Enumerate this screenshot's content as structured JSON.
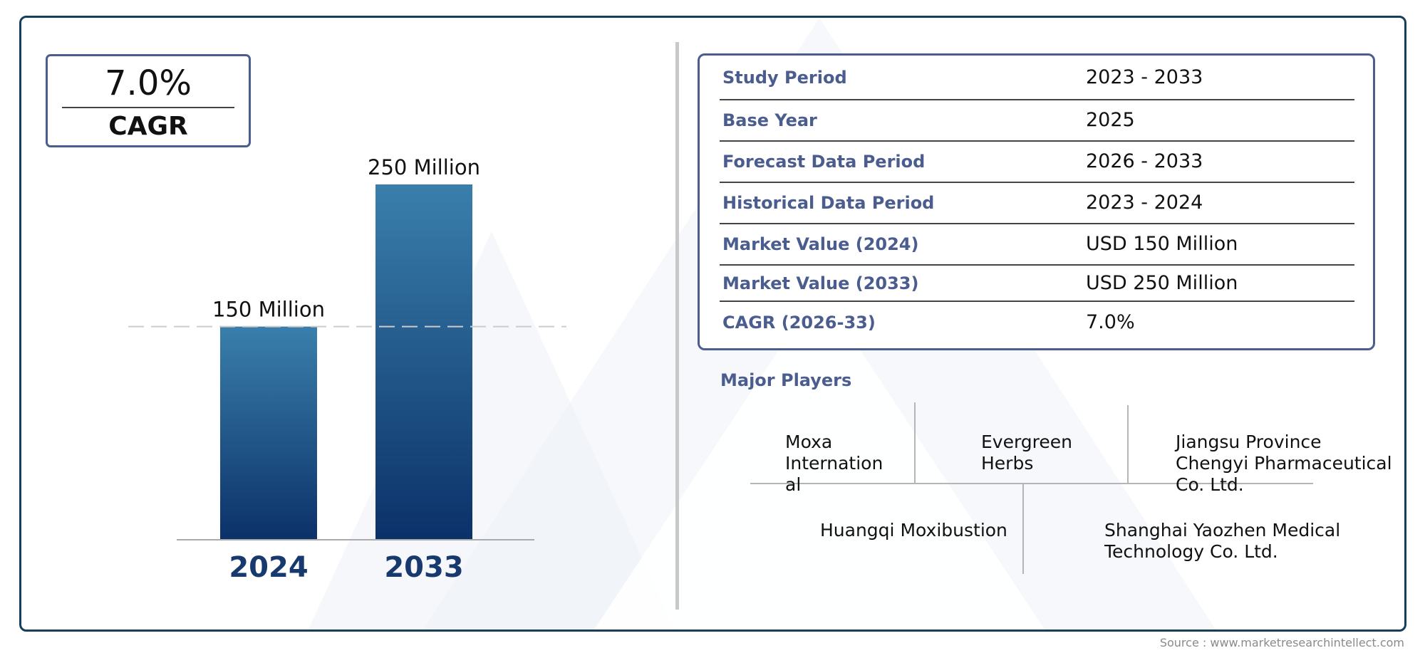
{
  "cagr_badge": {
    "value": "7.0%",
    "label": "CAGR"
  },
  "chart_data": {
    "type": "bar",
    "categories": [
      "2024",
      "2033"
    ],
    "values": [
      150,
      250
    ],
    "value_labels": [
      "150 Million",
      "250 Million"
    ],
    "unit": "Million",
    "reference_line": 150,
    "ylim": [
      0,
      250
    ],
    "colors": {
      "bar_top": "#3a7fac",
      "bar_bottom": "#0b3169",
      "category_text": "#17396e",
      "reference_line": "#cccccc",
      "baseline": "#aaaaaa"
    }
  },
  "info_table": {
    "rows": [
      {
        "key": "Study Period",
        "value": "2023 - 2033"
      },
      {
        "key": "Base Year",
        "value": "2025"
      },
      {
        "key": "Forecast Data Period",
        "value": "2026 - 2033"
      },
      {
        "key": "Historical Data Period",
        "value": "2023 - 2024"
      },
      {
        "key": "Market Value (2024)",
        "value": "USD 150 Million"
      },
      {
        "key": "Market Value (2033)",
        "value": "USD 250 Million"
      },
      {
        "key": "CAGR (2026-33)",
        "value": "7.0%"
      }
    ]
  },
  "major_players": {
    "title": "Major Players",
    "players": [
      {
        "lines": [
          "Moxa",
          "Internation",
          "al"
        ]
      },
      {
        "lines": [
          "Evergreen",
          "Herbs"
        ]
      },
      {
        "lines": [
          "Jiangsu Province",
          "Chengyi Pharmaceutical",
          "Co. Ltd."
        ]
      },
      {
        "lines": [
          "Huangqi Moxibustion"
        ]
      },
      {
        "lines": [
          "Shanghai Yaozhen Medical",
          "Technology Co. Ltd."
        ]
      }
    ]
  },
  "source": "Source : www.marketresearchintellect.com",
  "colors": {
    "frame": "#16405a",
    "accent": "#4b5d8f"
  }
}
